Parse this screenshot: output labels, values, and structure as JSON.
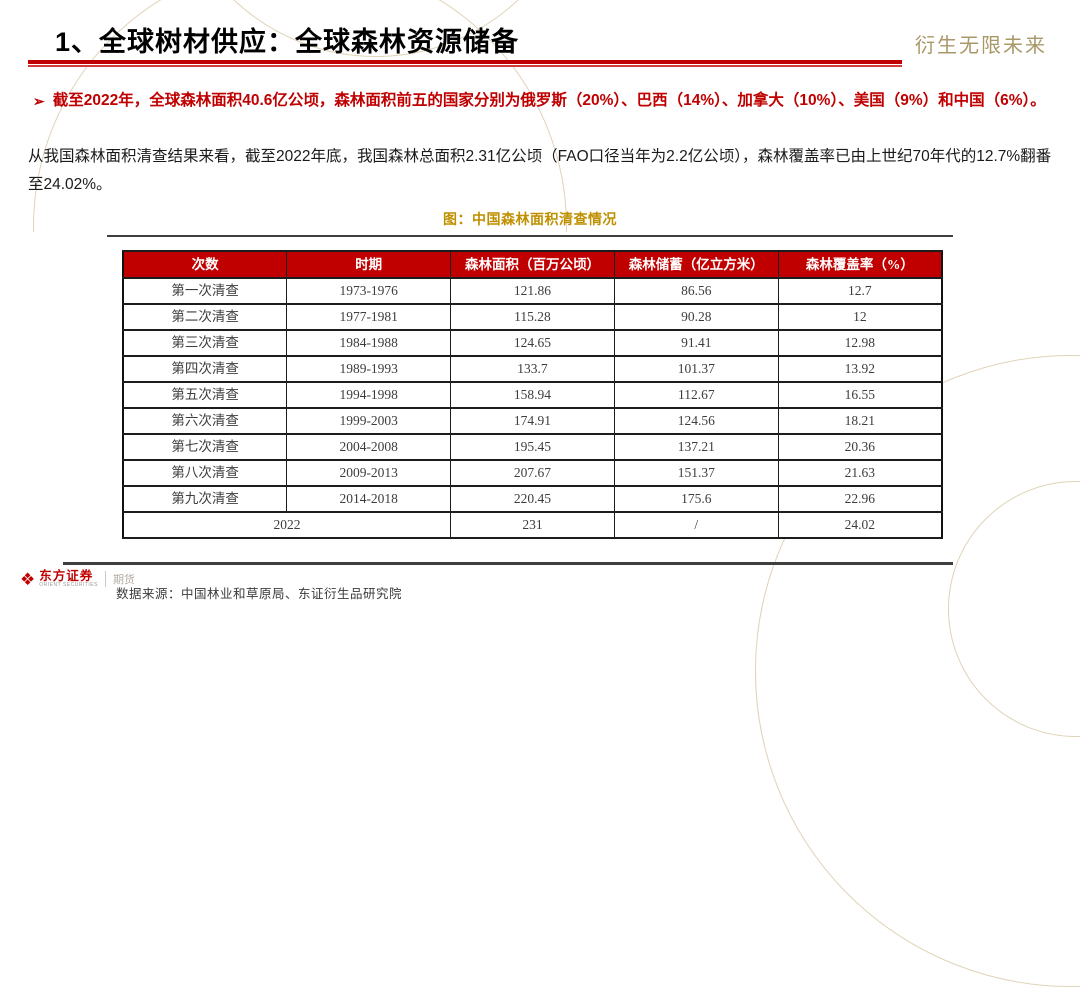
{
  "header": {
    "title": "1、全球树材供应：全球森林资源储备",
    "brand_slogan": "衍生无限未来"
  },
  "key_point": {
    "bullet": "➢",
    "text": "截至2022年，全球森林面积40.6亿公顷，森林面积前五的国家分别为俄罗斯（20%）、巴西（14%）、加拿大（10%）、美国（9%）和中国（6%）。"
  },
  "body_paragraph": {
    "text": "从我国森林面积清查结果来看，截至2022年底，我国森林总面积2.31亿公顷（FAO口径当年为2.2亿公顷），森林覆盖率已由上世纪70年代的12.7%翻番至24.02%。"
  },
  "figure": {
    "caption": "图：中国森林面积清查情况"
  },
  "table": {
    "headers": [
      "次数",
      "时期",
      "森林面积（百万公顷）",
      "森林储蓄（亿立方米）",
      "森林覆盖率（%）"
    ],
    "rows": [
      [
        "第一次清查",
        "1973-1976",
        "121.86",
        "86.56",
        "12.7"
      ],
      [
        "第二次清查",
        "1977-1981",
        "115.28",
        "90.28",
        "12"
      ],
      [
        "第三次清查",
        "1984-1988",
        "124.65",
        "91.41",
        "12.98"
      ],
      [
        "第四次清查",
        "1989-1993",
        "133.7",
        "101.37",
        "13.92"
      ],
      [
        "第五次清查",
        "1994-1998",
        "158.94",
        "112.67",
        "16.55"
      ],
      [
        "第六次清查",
        "1999-2003",
        "174.91",
        "124.56",
        "18.21"
      ],
      [
        "第七次清查",
        "2004-2008",
        "195.45",
        "137.21",
        "20.36"
      ],
      [
        "第八次清查",
        "2009-2013",
        "207.67",
        "151.37",
        "21.63"
      ],
      [
        "第九次清查",
        "2014-2018",
        "220.45",
        "175.6",
        "22.96"
      ]
    ],
    "summary_row": {
      "label": "2022",
      "area": "231",
      "stock": "/",
      "coverage": "24.02"
    }
  },
  "footer": {
    "logo_icon": "❖",
    "logo_text": "东方证券",
    "logo_subtext": "ORIENT SECURITIES",
    "logo_tag": "期货",
    "source": "数据来源：中国林业和草原局、东证衍生品研究院"
  },
  "colors": {
    "accent_red": "#C00000",
    "brand_gold": "#A89868",
    "caption_gold": "#BF9000"
  }
}
